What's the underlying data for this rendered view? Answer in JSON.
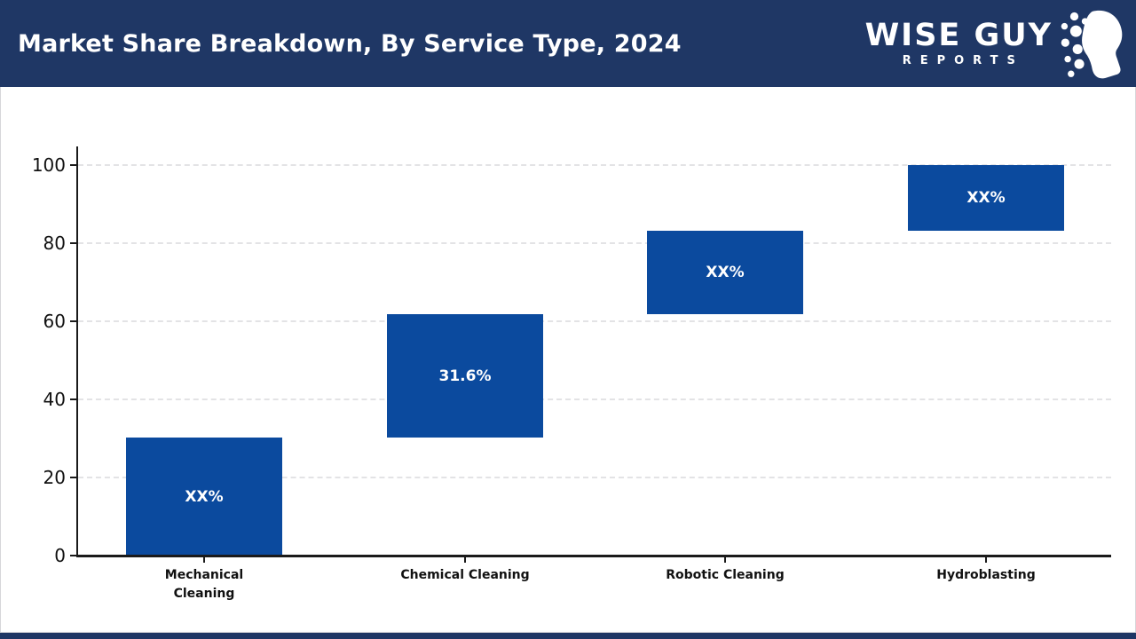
{
  "header": {
    "title": "Market Share Breakdown, By Service Type, 2024",
    "bg_color": "#1f3765",
    "logo": {
      "line1": "WISE GUY",
      "line2": "REPORTS"
    }
  },
  "watermark": {
    "line1": "WISE GUY",
    "line2": "REPORTS"
  },
  "footer": {
    "bg_color": "#1f3765"
  },
  "chart_data": {
    "type": "bar",
    "subtype": "floating-segment-breakdown",
    "title": "Market Share Breakdown, By Service Type, 2024",
    "categories": [
      "Mechanical Cleaning",
      "Chemical Cleaning",
      "Robotic Cleaning",
      "Hydroblasting"
    ],
    "segments": [
      {
        "category": "Mechanical Cleaning",
        "tick_label": "Mechanical\nCleaning",
        "start": 0,
        "end": 30.2,
        "size": 30.2,
        "label": "XX%"
      },
      {
        "category": "Chemical Cleaning",
        "tick_label": "Chemical Cleaning",
        "start": 30.2,
        "end": 61.8,
        "size": 31.6,
        "label": "31.6%"
      },
      {
        "category": "Robotic Cleaning",
        "tick_label": "Robotic Cleaning",
        "start": 61.8,
        "end": 83.2,
        "size": 21.4,
        "label": "XX%"
      },
      {
        "category": "Hydroblasting",
        "tick_label": "Hydroblasting",
        "start": 83.2,
        "end": 100,
        "size": 16.8,
        "label": "XX%"
      }
    ],
    "ylim": [
      0,
      100
    ],
    "yticks": [
      0,
      20,
      40,
      60,
      80,
      100
    ],
    "xlabel": "",
    "ylabel": "",
    "grid": "horizontal-dashed",
    "legend": "none",
    "bar_color": "#0b4a9e",
    "bar_label_color": "#ffffff",
    "axis_color": "#1a1a1a"
  }
}
